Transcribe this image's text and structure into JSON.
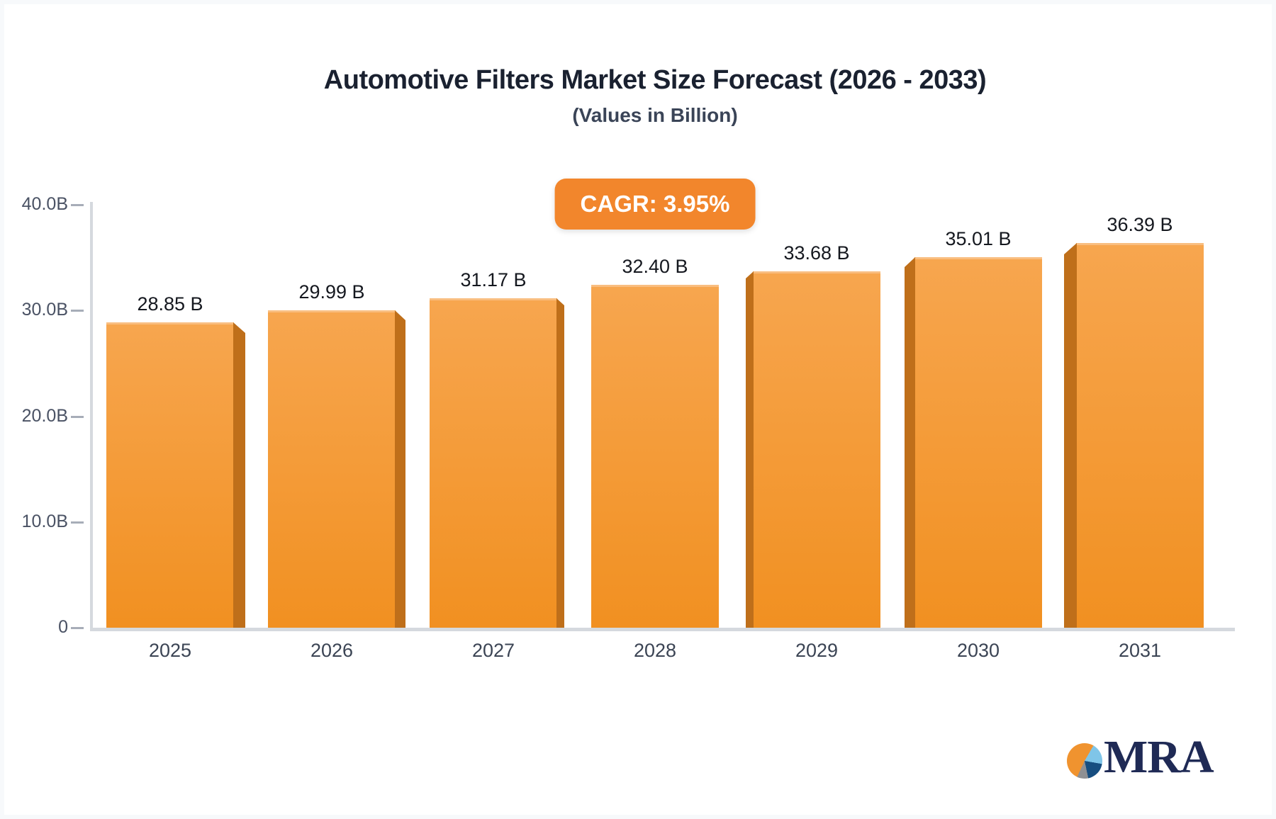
{
  "frame": {
    "page_background": "#f7f9fb",
    "canvas_background": "#ffffff"
  },
  "header": {
    "title": "Automotive Filters Market Size Forecast (2026 - 2033)",
    "subtitle": "(Values in Billion)"
  },
  "cagr_badge": {
    "label": "CAGR: 3.95%",
    "background": "#f2862c",
    "text_color": "#ffffff"
  },
  "chart_data": {
    "type": "bar",
    "title": "Automotive Filters Market Size Forecast (2026 - 2033)",
    "subtitle": "(Values in Billion)",
    "annotation": "CAGR: 3.95%",
    "categories": [
      "2025",
      "2026",
      "2027",
      "2028",
      "2029",
      "2030",
      "2031"
    ],
    "values": [
      28.85,
      29.99,
      31.17,
      32.4,
      33.68,
      35.01,
      36.39
    ],
    "value_labels": [
      "28.85 B",
      "29.99 B",
      "31.17 B",
      "32.40 B",
      "33.68 B",
      "35.01 B",
      "36.39 B"
    ],
    "ylim": [
      0,
      40
    ],
    "y_ticks": [
      {
        "value": 0,
        "label": "0"
      },
      {
        "value": 10,
        "label": "10.0B"
      },
      {
        "value": 20,
        "label": "20.0B"
      },
      {
        "value": 30,
        "label": "30.0B"
      },
      {
        "value": 40,
        "label": "40.0B"
      }
    ],
    "grid": false,
    "legend": false,
    "colors": {
      "bar_top": "#f7a64f",
      "bar_bottom": "#f19021",
      "bar_side": "#bf6f1a",
      "axis_line": "#d5d9de",
      "tick_mark": "#a7adb8",
      "tick_label": "#4a5264",
      "x_label": "#3b4454",
      "value_label": "#15181f"
    }
  },
  "logo": {
    "text": "MRA",
    "text_color": "#1f2a55",
    "pie_slices": [
      {
        "name": "orange",
        "color": "#f0932f",
        "from": 205,
        "to": 390
      },
      {
        "name": "light-blue",
        "color": "#7fc5e8",
        "from": 30,
        "to": 100
      },
      {
        "name": "navy",
        "color": "#174e80",
        "from": 100,
        "to": 168
      },
      {
        "name": "gray",
        "color": "#8f9093",
        "from": 168,
        "to": 205
      }
    ]
  }
}
